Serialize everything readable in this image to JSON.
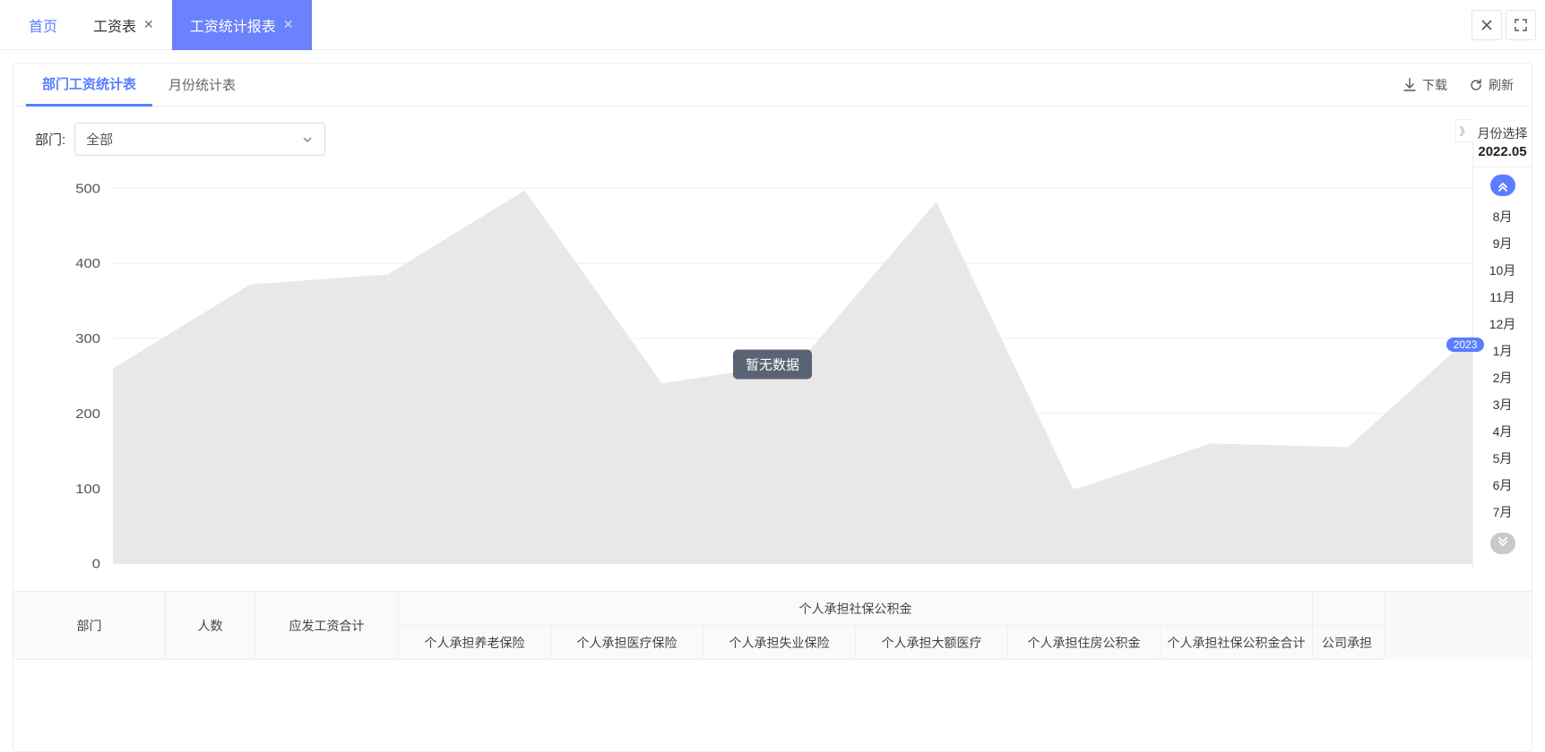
{
  "top_tabs": {
    "home": "首页",
    "salary_table": "工资表",
    "salary_report": "工资统计报表"
  },
  "sub_tabs": {
    "dept_stats": "部门工资统计表",
    "month_stats": "月份统计表"
  },
  "toolbar": {
    "download": "下载",
    "refresh": "刷新"
  },
  "filter": {
    "dept_label": "部门:",
    "dept_value": "全部"
  },
  "chart": {
    "type": "area",
    "no_data_text": "暂无数据",
    "y_ticks": [
      0,
      100,
      200,
      300,
      400,
      500
    ],
    "ylim": [
      0,
      500
    ],
    "values": [
      260,
      372,
      385,
      497,
      240,
      268,
      482,
      98,
      160,
      155,
      320
    ],
    "fill_color": "#e8e8e8",
    "grid_color": "#eeeeee",
    "tick_color": "#555555",
    "tick_fontsize": 14,
    "tooltip_bg": "#5a6373",
    "tooltip_text_color": "#ffffff"
  },
  "table": {
    "cols_fixed": [
      "部门",
      "人数",
      "应发工资合计"
    ],
    "group_header": "个人承担社保公积金",
    "group_sub": [
      "个人承担养老保险",
      "个人承担医疗保险",
      "个人承担失业保险",
      "个人承担大额医疗",
      "个人承担住房公积金",
      "个人承担社保公积金合计"
    ],
    "trailing_col": "公司承担"
  },
  "month_panel": {
    "collapse_glyph": "》",
    "title": "月份选择",
    "selected": "2022.05",
    "months": [
      "8月",
      "9月",
      "10月",
      "11月",
      "12月",
      "1月",
      "2月",
      "3月",
      "4月",
      "5月",
      "6月",
      "7月"
    ],
    "year_badge": "2023",
    "year_badge_after_index": 4
  },
  "colors": {
    "primary": "#5a7eff",
    "active_tab_bg": "#6a82fb",
    "border": "#eeeeee"
  }
}
